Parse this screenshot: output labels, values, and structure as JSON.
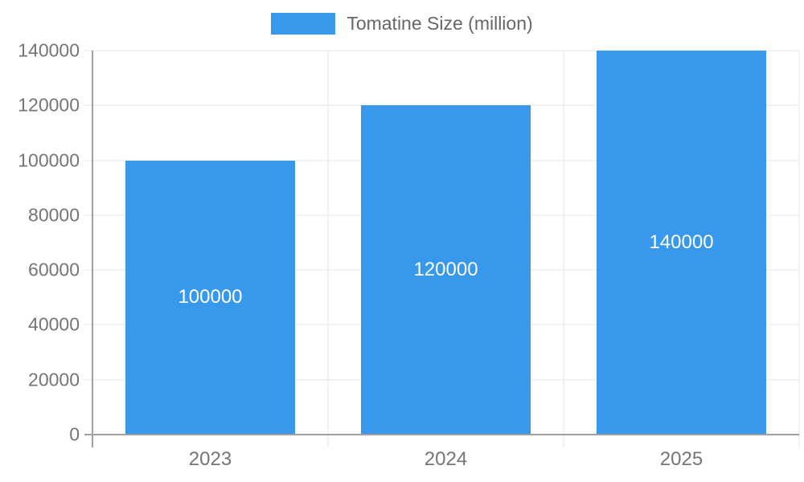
{
  "chart_data": {
    "type": "bar",
    "title": "",
    "categories": [
      "2023",
      "2024",
      "2025"
    ],
    "series": [
      {
        "name": "Tomatine Size (million)",
        "color": "#3898ec",
        "values": [
          100000,
          120000,
          140000
        ]
      }
    ],
    "data_labels": [
      "100000",
      "120000",
      "140000"
    ],
    "xlabel": "",
    "ylabel": "",
    "ylim": [
      0,
      140000
    ],
    "yticks": [
      0,
      20000,
      40000,
      60000,
      80000,
      100000,
      120000,
      140000
    ],
    "grid": "horizontal lines at y ticks, vertical lines at category boundaries",
    "legend_position": "top-center",
    "colors": {
      "bar": "#3898ec",
      "bar_value_label": "#ffffff",
      "axis_tick_label": "#757575",
      "legend_text": "#666666",
      "gridline": "#e6e6e6",
      "axis_line": "#a0a0a0",
      "background": "#ffffff"
    }
  }
}
